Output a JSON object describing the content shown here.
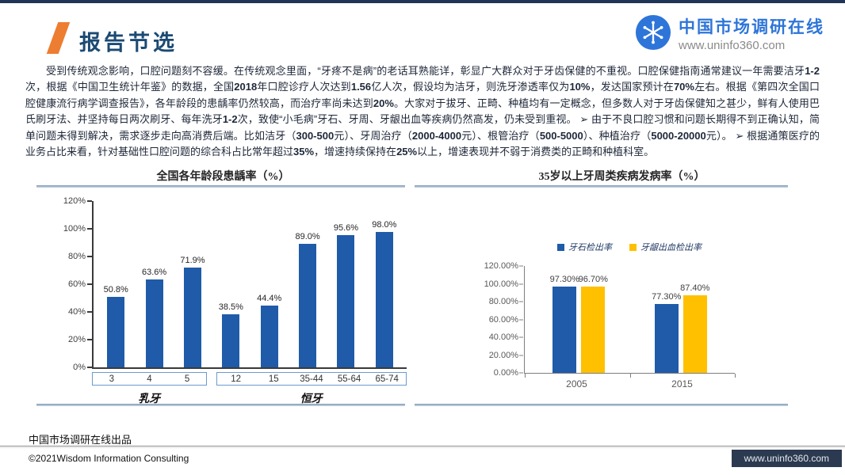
{
  "header": {
    "title": "报告节选",
    "brand": "中国市场调研在线",
    "url": "www.uninfo360.com"
  },
  "colors": {
    "accent_orange": "#ED7D31",
    "brand_blue": "#2E75D9",
    "title_navy": "#1B4A73",
    "top_bar_navy": "#1F3456"
  },
  "paragraph": {
    "segments": [
      {
        "t": "受到传统观念影响，口腔问题刻不容缓。在传统观念里面，“牙疼不是病”的老话耳熟能详，彰显广大群众对于牙齿保健的不重视。口腔保健指南通常建议一年需要洁牙",
        "b": false
      },
      {
        "t": "1-2",
        "b": true
      },
      {
        "t": "次，根据《中国卫生统计年鉴》的数据，全国",
        "b": false
      },
      {
        "t": "2018",
        "b": true
      },
      {
        "t": "年口腔诊疗人次达到",
        "b": false
      },
      {
        "t": "1.56",
        "b": true
      },
      {
        "t": "亿人次，假设均为洁牙，则洗牙渗透率仅为",
        "b": false
      },
      {
        "t": "10%",
        "b": true
      },
      {
        "t": "，发达国家预计在",
        "b": false
      },
      {
        "t": "70%",
        "b": true
      },
      {
        "t": "左右。根据《第四次全国口腔健康流行病学调查报告》，各年龄段的患龋率仍然较高，而治疗率尚未达到",
        "b": false
      },
      {
        "t": "20%",
        "b": true
      },
      {
        "t": "。大家对于拔牙、正畸、种植均有一定概念，但多数人对于牙齿保健知之甚少，鲜有人使用巴氏刷牙法、并坚持每日两次刷牙、每年洗牙",
        "b": false
      },
      {
        "t": "1-2",
        "b": true
      },
      {
        "t": "次，致使“小毛病”牙石、牙周、牙龈出血等疾病仍然高发，仍未受到重视。 ➢ 由于不良口腔习惯和问题长期得不到正确认知，简单问题未得到解决，需求逐步走向高消费后端。比如洁牙（",
        "b": false
      },
      {
        "t": "300-500",
        "b": true
      },
      {
        "t": "元）、牙周治疗（",
        "b": false
      },
      {
        "t": "2000-4000",
        "b": true
      },
      {
        "t": "元）、根管治疗（",
        "b": false
      },
      {
        "t": "500-5000",
        "b": true
      },
      {
        "t": "）、种植治疗（",
        "b": false
      },
      {
        "t": "5000-20000",
        "b": true
      },
      {
        "t": "元）。 ➢ 根据通策医疗的业务占比来看，针对基础性口腔问题的综合科占比常年超过",
        "b": false
      },
      {
        "t": "35%",
        "b": true
      },
      {
        "t": "，增速持续保持在",
        "b": false
      },
      {
        "t": "25%",
        "b": true
      },
      {
        "t": "以上，增速表现并不弱于消费类的正畸和种植科室。",
        "b": false
      }
    ]
  },
  "chart_data": [
    {
      "type": "bar",
      "title": "全国各年龄段患龋率（%）",
      "categories": [
        "3",
        "4",
        "5",
        "12",
        "15",
        "35-44",
        "55-64",
        "65-74"
      ],
      "values": [
        50.8,
        63.6,
        71.9,
        38.5,
        44.4,
        89.0,
        95.6,
        98.0
      ],
      "labels": [
        "50.8%",
        "63.6%",
        "71.9%",
        "38.5%",
        "44.4%",
        "89.0%",
        "95.6%",
        "98.0%"
      ],
      "groups": [
        {
          "label": "乳牙",
          "count": 3
        },
        {
          "label": "恒牙",
          "count": 5
        }
      ],
      "xlabel": "",
      "ylabel": "",
      "ylim": [
        0,
        120
      ],
      "yticks": [
        "120%",
        "100%",
        "80%",
        "60%",
        "40%",
        "20%",
        "0%"
      ],
      "bar_color": "#1F5BA8",
      "box_border_color": "#6B9BD2",
      "grid": false,
      "legend_position": "none"
    },
    {
      "type": "bar",
      "title": "35岁以上牙周类疾病发病率（%）",
      "categories": [
        "2005",
        "2015"
      ],
      "series": [
        {
          "name": "牙石检出率",
          "color": "#1F5BA8",
          "values": [
            97.3,
            77.3
          ],
          "labels": [
            "97.30%",
            "77.30%"
          ]
        },
        {
          "name": "牙龈出血检出率",
          "color": "#FFC000",
          "values": [
            96.7,
            87.4
          ],
          "labels": [
            "96.70%",
            "87.40%"
          ]
        }
      ],
      "xlabel": "",
      "ylabel": "",
      "ylim": [
        0,
        120
      ],
      "yticks": [
        "120.00%",
        "100.00%",
        "80.00%",
        "60.00%",
        "40.00%",
        "20.00%",
        "0.00%"
      ],
      "grid": false,
      "legend_position": "top"
    }
  ],
  "footer": {
    "producer": "中国市场调研在线出品",
    "copyright": "©2021Wisdom Information Consulting",
    "badge_url": "www.uninfo360.com"
  }
}
